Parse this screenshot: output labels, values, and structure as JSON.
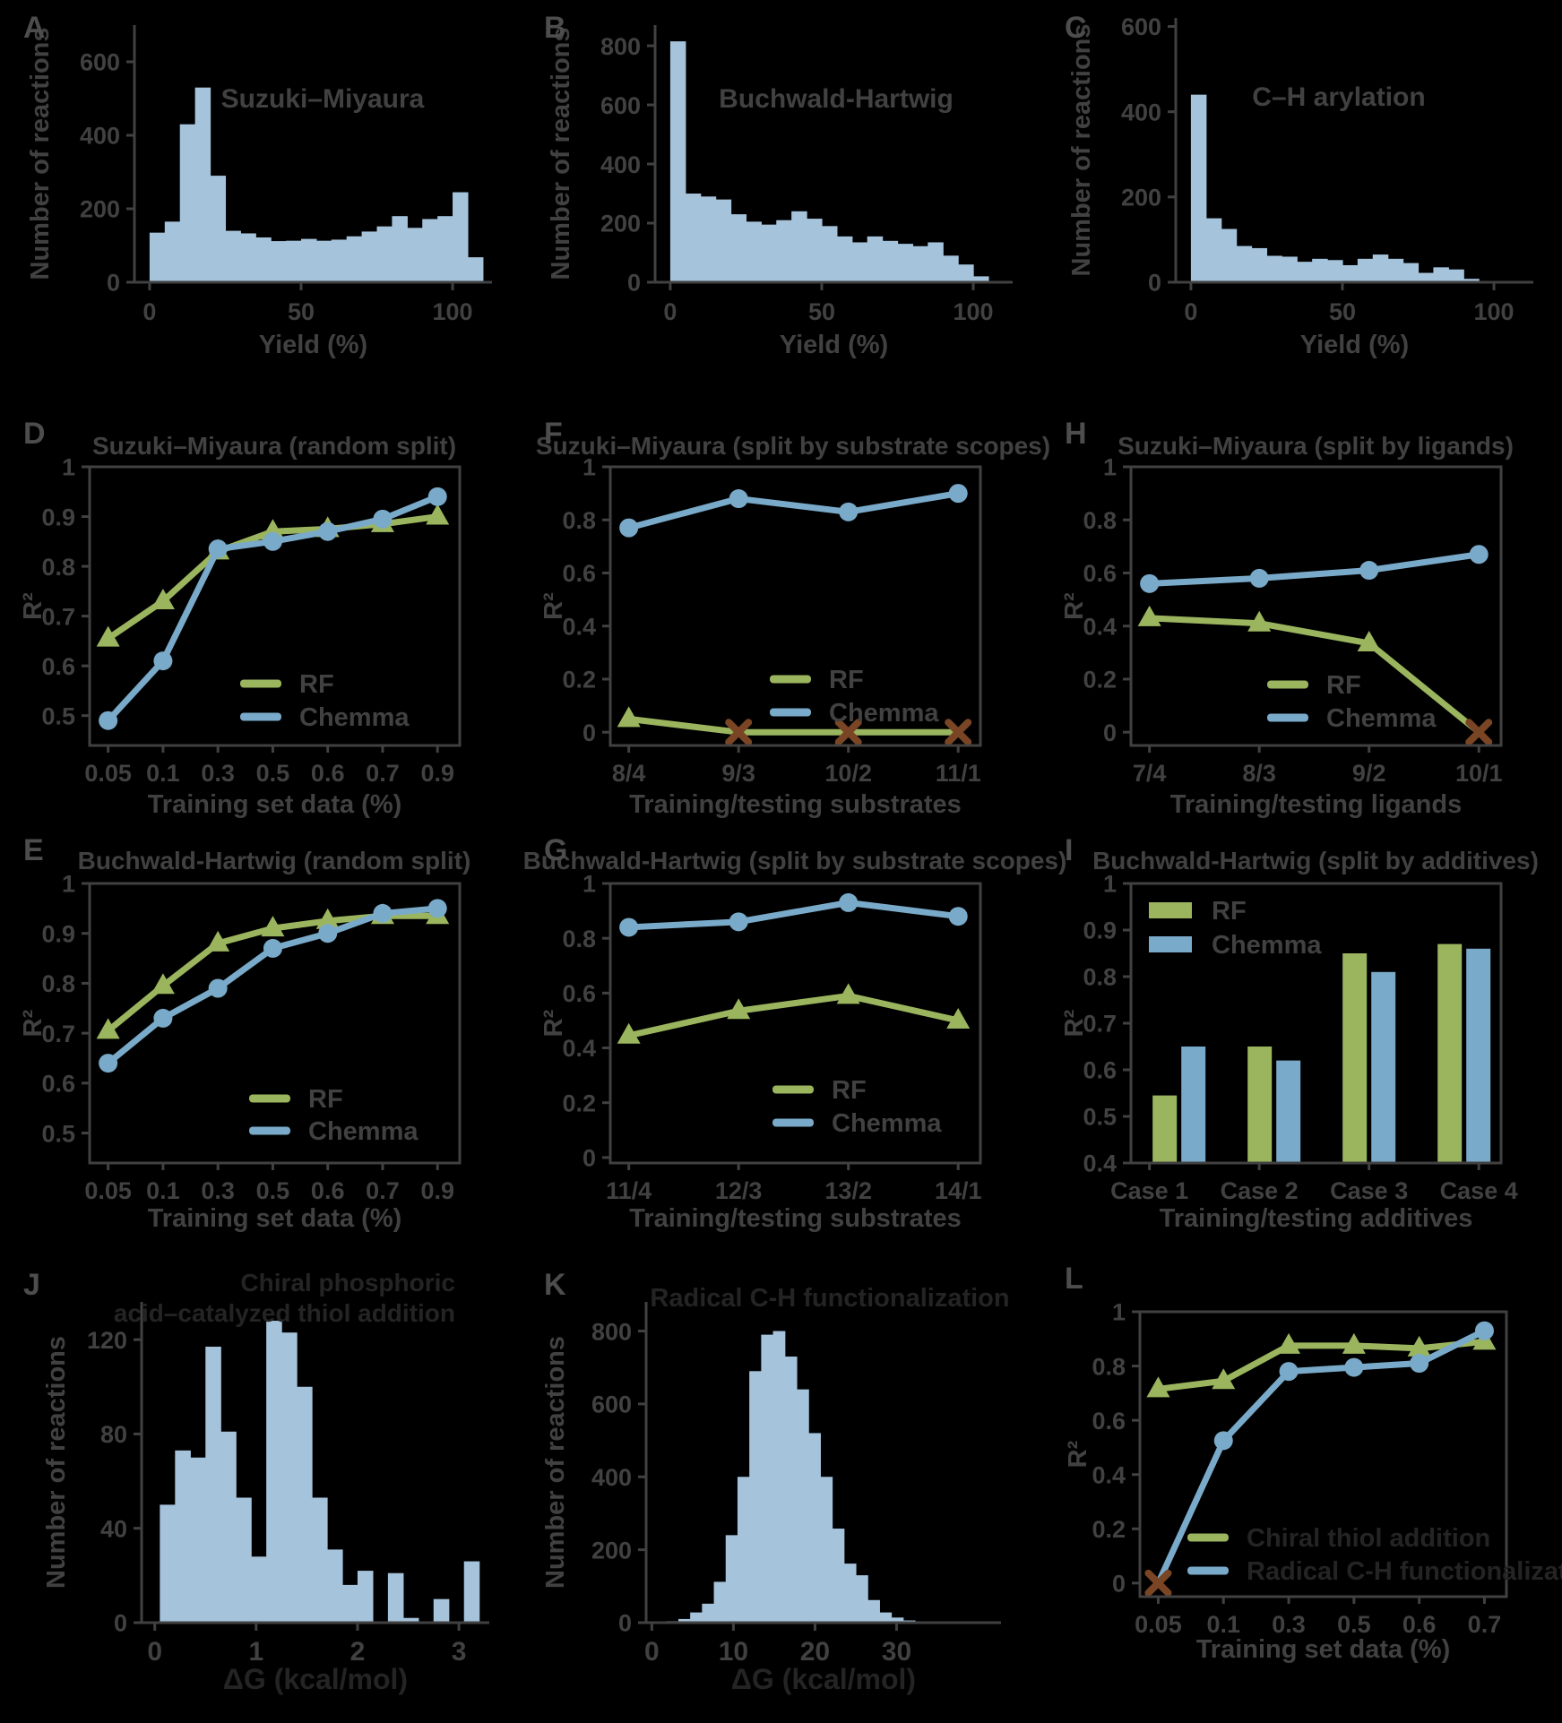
{
  "figure": {
    "background": "#000000",
    "colors": {
      "text": "#414141",
      "faint_text": "#242424",
      "letter": "#4d4d4d",
      "axis": "#414141",
      "rf_green": "#9ab55e",
      "chemma_blue": "#79aac9",
      "hist_blue": "#a5c3db",
      "x_marker_brown": "#7a4524"
    }
  },
  "chart_data": [
    {
      "id": "A",
      "type": "histogram",
      "title": "Suzuki–Miyaura",
      "ylabel": "Number of reactions",
      "xlabel": "Yield (%)",
      "y_ticks": [
        0,
        200,
        400,
        600
      ],
      "x_ticks": [
        0,
        50,
        100
      ],
      "ylim": [
        0,
        700
      ],
      "xlim": [
        -5,
        113
      ],
      "bin_start": 0,
      "bin_width": 5,
      "values": [
        135,
        165,
        430,
        530,
        290,
        140,
        133,
        122,
        112,
        113,
        118,
        113,
        116,
        125,
        138,
        152,
        180,
        148,
        172,
        180,
        245,
        68
      ]
    },
    {
      "id": "B",
      "type": "histogram",
      "title": "Buchwald-Hartwig",
      "ylabel": "Number of reactions",
      "xlabel": "Yield (%)",
      "y_ticks": [
        0,
        200,
        400,
        600,
        800
      ],
      "x_ticks": [
        0,
        50,
        100
      ],
      "ylim": [
        0,
        870
      ],
      "xlim": [
        -5,
        113
      ],
      "bin_start": 0,
      "bin_width": 5,
      "values": [
        815,
        300,
        290,
        280,
        230,
        205,
        195,
        210,
        240,
        215,
        190,
        155,
        135,
        155,
        140,
        130,
        122,
        135,
        90,
        60,
        20
      ]
    },
    {
      "id": "C",
      "type": "histogram",
      "title": "C–H arylation",
      "ylabel": "Number of reactions",
      "xlabel": "Yield (%)",
      "y_ticks": [
        0,
        200,
        400,
        600
      ],
      "x_ticks": [
        0,
        50,
        100
      ],
      "ylim": [
        0,
        620
      ],
      "xlim": [
        -5,
        113
      ],
      "bin_start": 0,
      "bin_width": 5,
      "values": [
        440,
        150,
        125,
        85,
        80,
        62,
        60,
        48,
        55,
        52,
        40,
        55,
        65,
        55,
        45,
        22,
        35,
        30,
        8,
        3,
        1
      ]
    },
    {
      "id": "D",
      "type": "line",
      "title": "Suzuki–Miyaura (random split)",
      "ylabel": "R²",
      "xlabel": "Training set data (%)",
      "categories": [
        "0.05",
        "0.1",
        "0.3",
        "0.5",
        "0.6",
        "0.7",
        "0.9"
      ],
      "y_ticks": [
        0.5,
        0.6,
        0.7,
        0.8,
        0.9,
        1.0
      ],
      "ylim": [
        0.44,
        1.0
      ],
      "series": [
        {
          "name": "RF",
          "color": "rf_green",
          "marker": "triangle",
          "values": [
            0.655,
            0.73,
            0.83,
            0.87,
            0.875,
            0.885,
            0.9
          ],
          "x_marker_indices": []
        },
        {
          "name": "Chemma",
          "color": "chemma_blue",
          "marker": "circle",
          "values": [
            0.49,
            0.61,
            0.835,
            0.85,
            0.87,
            0.895,
            0.94
          ],
          "x_marker_indices": []
        }
      ],
      "legend": {
        "items": [
          {
            "label": "RF",
            "color": "rf_green"
          },
          {
            "label": "Chemma",
            "color": "chemma_blue"
          }
        ]
      }
    },
    {
      "id": "F",
      "type": "line",
      "title": "Suzuki–Miyaura (split by substrate scopes)",
      "ylabel": "R²",
      "xlabel": "Training/testing substrates",
      "categories": [
        "8/4",
        "9/3",
        "10/2",
        "11/1"
      ],
      "y_ticks": [
        0.0,
        0.2,
        0.4,
        0.6,
        0.8,
        1.0
      ],
      "ylim": [
        -0.05,
        1.0
      ],
      "series": [
        {
          "name": "RF",
          "color": "rf_green",
          "marker": "triangle",
          "values": [
            0.05,
            0.0,
            0.0,
            0.0
          ],
          "x_marker_indices": [
            1,
            2,
            3
          ]
        },
        {
          "name": "Chemma",
          "color": "chemma_blue",
          "marker": "circle",
          "values": [
            0.77,
            0.88,
            0.83,
            0.9
          ],
          "x_marker_indices": []
        }
      ],
      "legend": {
        "items": [
          {
            "label": "RF",
            "color": "rf_green"
          },
          {
            "label": "Chemma",
            "color": "chemma_blue"
          }
        ]
      }
    },
    {
      "id": "H",
      "type": "line",
      "title": "Suzuki–Miyaura (split by ligands)",
      "ylabel": "R²",
      "xlabel": "Training/testing ligands",
      "categories": [
        "7/4",
        "8/3",
        "9/2",
        "10/1"
      ],
      "y_ticks": [
        0.0,
        0.2,
        0.4,
        0.6,
        0.8,
        1.0
      ],
      "ylim": [
        -0.05,
        1.0
      ],
      "series": [
        {
          "name": "RF",
          "color": "rf_green",
          "marker": "triangle",
          "values": [
            0.43,
            0.41,
            0.335,
            0.0
          ],
          "x_marker_indices": [
            3
          ]
        },
        {
          "name": "Chemma",
          "color": "chemma_blue",
          "marker": "circle",
          "values": [
            0.56,
            0.58,
            0.61,
            0.67
          ],
          "x_marker_indices": []
        }
      ],
      "legend": {
        "items": [
          {
            "label": "RF",
            "color": "rf_green"
          },
          {
            "label": "Chemma",
            "color": "chemma_blue"
          }
        ]
      }
    },
    {
      "id": "E",
      "type": "line",
      "title": "Buchwald-Hartwig (random split)",
      "ylabel": "R²",
      "xlabel": "Training set data (%)",
      "categories": [
        "0.05",
        "0.1",
        "0.3",
        "0.5",
        "0.6",
        "0.7",
        "0.9"
      ],
      "y_ticks": [
        0.5,
        0.6,
        0.7,
        0.8,
        0.9,
        1.0
      ],
      "ylim": [
        0.44,
        1.0
      ],
      "series": [
        {
          "name": "RF",
          "color": "rf_green",
          "marker": "triangle",
          "values": [
            0.705,
            0.795,
            0.88,
            0.91,
            0.925,
            0.935,
            0.935
          ],
          "x_marker_indices": []
        },
        {
          "name": "Chemma",
          "color": "chemma_blue",
          "marker": "circle",
          "values": [
            0.64,
            0.73,
            0.79,
            0.87,
            0.9,
            0.94,
            0.95
          ],
          "x_marker_indices": []
        }
      ],
      "legend": {
        "items": [
          {
            "label": "RF",
            "color": "rf_green"
          },
          {
            "label": "Chemma",
            "color": "chemma_blue"
          }
        ]
      }
    },
    {
      "id": "G",
      "type": "line",
      "title": "Buchwald-Hartwig (split by substrate scopes)",
      "ylabel": "R²",
      "xlabel": "Training/testing substrates",
      "categories": [
        "11/4",
        "12/3",
        "13/2",
        "14/1"
      ],
      "y_ticks": [
        0.0,
        0.2,
        0.4,
        0.6,
        0.8,
        1.0
      ],
      "ylim": [
        -0.02,
        1.0
      ],
      "series": [
        {
          "name": "RF",
          "color": "rf_green",
          "marker": "triangle",
          "values": [
            0.445,
            0.535,
            0.59,
            0.5
          ],
          "x_marker_indices": []
        },
        {
          "name": "Chemma",
          "color": "chemma_blue",
          "marker": "circle",
          "values": [
            0.84,
            0.86,
            0.93,
            0.88
          ],
          "x_marker_indices": []
        }
      ],
      "legend": {
        "items": [
          {
            "label": "RF",
            "color": "rf_green"
          },
          {
            "label": "Chemma",
            "color": "chemma_blue"
          }
        ]
      }
    },
    {
      "id": "I",
      "type": "bar",
      "title": "Buchwald-Hartwig (split by additives)",
      "ylabel": "R²",
      "xlabel": "Training/testing additives",
      "categories": [
        "Case 1",
        "Case 2",
        "Case 3",
        "Case 4"
      ],
      "y_ticks": [
        0.4,
        0.5,
        0.6,
        0.7,
        0.8,
        0.9,
        1.0
      ],
      "ylim": [
        0.4,
        1.0
      ],
      "series": [
        {
          "name": "RF",
          "color": "rf_green",
          "values": [
            0.545,
            0.65,
            0.85,
            0.87
          ]
        },
        {
          "name": "Chemma",
          "color": "chemma_blue",
          "values": [
            0.65,
            0.62,
            0.81,
            0.86
          ]
        }
      ],
      "legend": {
        "items": [
          {
            "label": "RF",
            "color": "rf_green"
          },
          {
            "label": "Chemma",
            "color": "chemma_blue"
          }
        ]
      }
    },
    {
      "id": "J",
      "type": "histogram",
      "title_lines": [
        "Chiral phosphoric",
        "acid–catalyzed thiol addition"
      ],
      "title_faint": true,
      "ylabel": "Number of reactions",
      "xlabel": "ΔG (kcal/mol)",
      "xlabel_faint": true,
      "y_ticks": [
        0,
        40,
        80,
        120
      ],
      "x_ticks": [
        0,
        1,
        2,
        3
      ],
      "ylim": [
        0,
        136
      ],
      "xlim": [
        -0.13,
        3.3
      ],
      "bin_start": 0.05,
      "bin_width": 0.15,
      "values": [
        50,
        73,
        70,
        117,
        81,
        53,
        28,
        128,
        123,
        100,
        53,
        31,
        16,
        22,
        0,
        21,
        2,
        0,
        10,
        0,
        26
      ]
    },
    {
      "id": "K",
      "type": "histogram",
      "title": "Radical C-H functionalization",
      "title_faint": true,
      "ylabel": "Number of reactions",
      "xlabel": "ΔG (kcal/mol)",
      "xlabel_faint": true,
      "y_ticks": [
        0,
        200,
        400,
        600,
        800
      ],
      "x_ticks": [
        0,
        10,
        20,
        30
      ],
      "ylim": [
        0,
        880
      ],
      "xlim": [
        -0.7,
        42.8
      ],
      "bin_start": 1.8,
      "bin_width": 1.45,
      "values": [
        4,
        10,
        28,
        52,
        112,
        240,
        400,
        690,
        790,
        800,
        730,
        640,
        520,
        400,
        258,
        162,
        130,
        62,
        28,
        14,
        6,
        3
      ]
    },
    {
      "id": "L",
      "type": "line",
      "title": "",
      "ylabel": "R²",
      "xlabel": "Training set data (%)",
      "categories": [
        "0.05",
        "0.1",
        "0.3",
        "0.5",
        "0.6",
        "0.7"
      ],
      "y_ticks": [
        0.0,
        0.2,
        0.4,
        0.6,
        0.8,
        1.0
      ],
      "ylim": [
        -0.05,
        1.0
      ],
      "series": [
        {
          "name": "Chiral thiol addition",
          "color": "rf_green",
          "marker": "triangle",
          "values": [
            0.715,
            0.745,
            0.875,
            0.875,
            0.865,
            0.89
          ],
          "x_marker_indices": []
        },
        {
          "name": "Radical C-H functionalization",
          "color": "chemma_blue",
          "marker": "circle",
          "values": [
            0.0,
            0.525,
            0.78,
            0.795,
            0.81,
            0.93
          ],
          "x_marker_indices": [
            0
          ]
        }
      ],
      "legend": {
        "faint": true,
        "items": [
          {
            "label": "Chiral thiol addition",
            "color": "rf_green"
          },
          {
            "label": "Radical C-H functionalization",
            "color": "chemma_blue"
          }
        ]
      }
    }
  ]
}
